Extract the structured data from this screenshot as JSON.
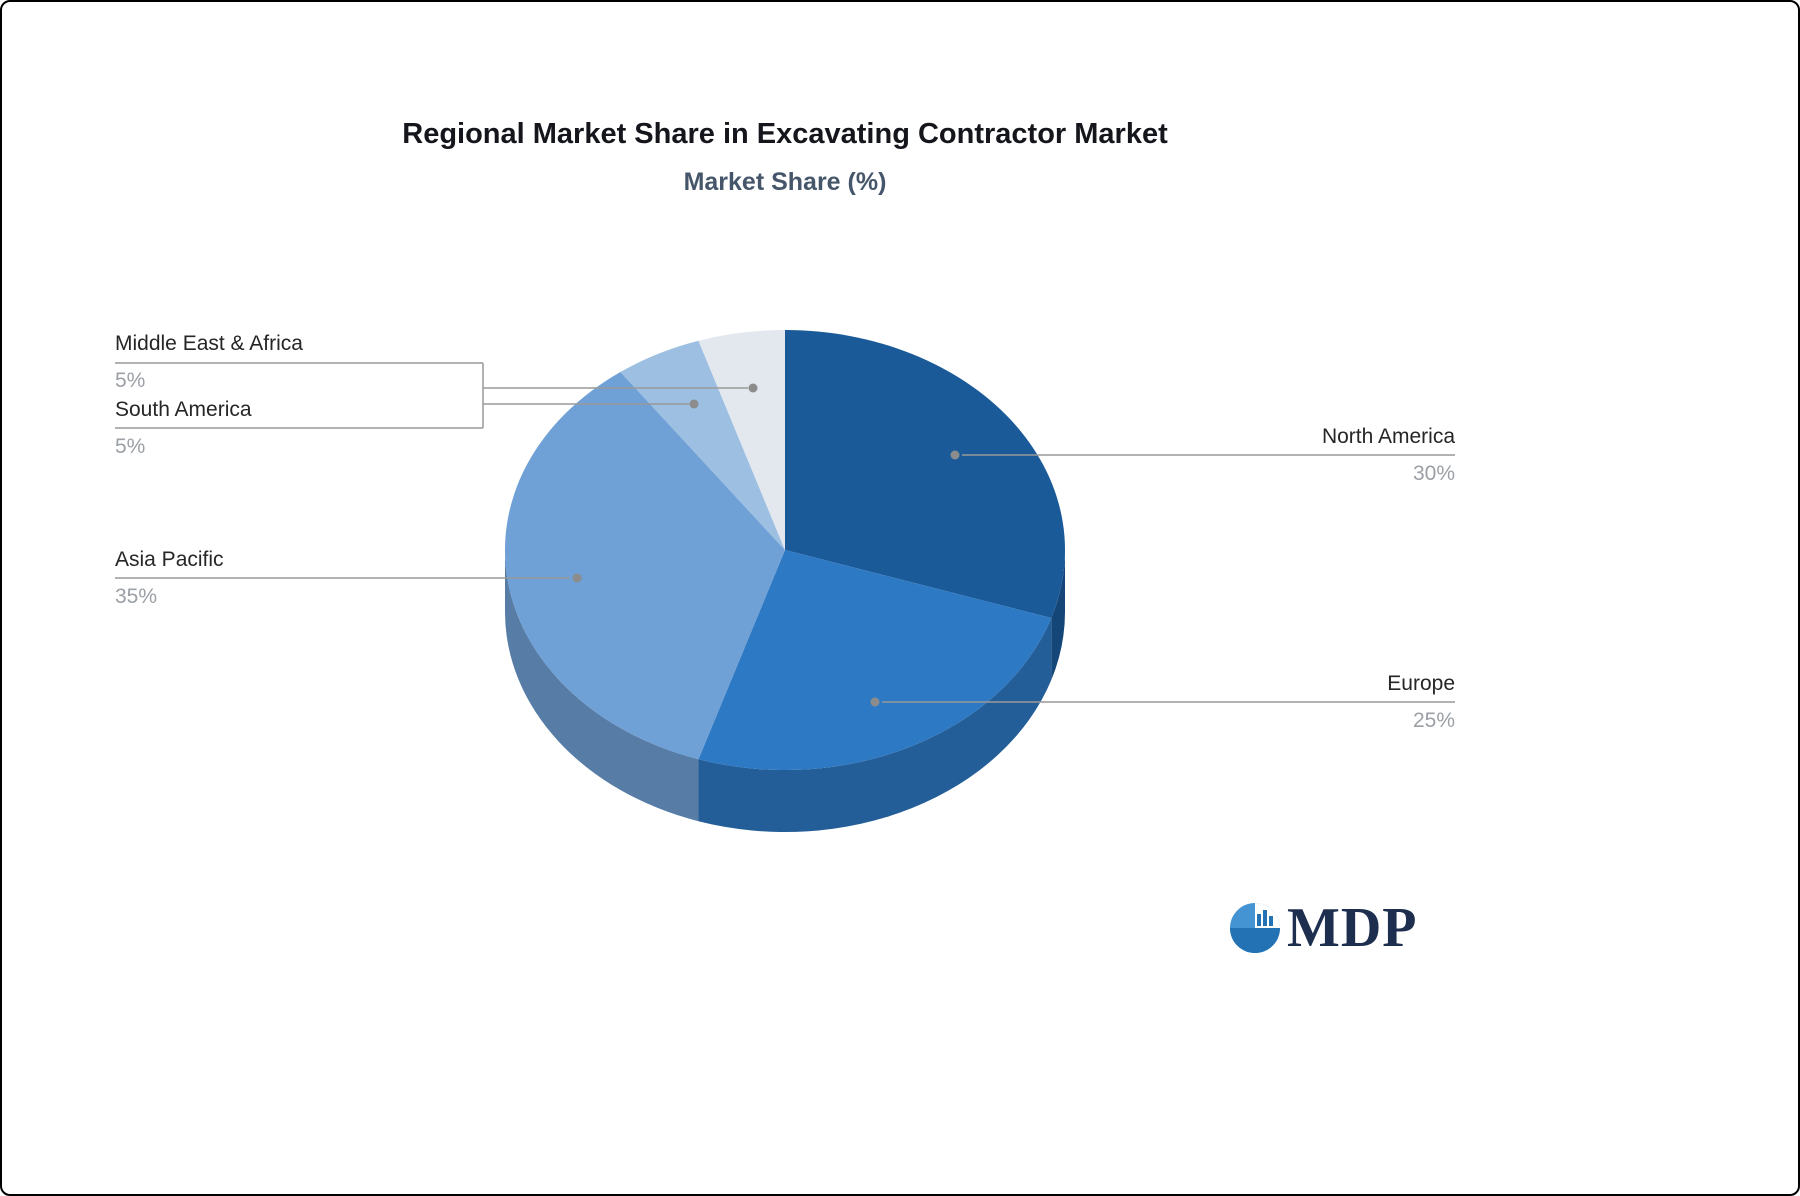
{
  "chart_data": {
    "type": "pie",
    "title": "Regional Market Share in Excavating Contractor Market",
    "subtitle": "Market Share (%)",
    "unit": "%",
    "style": "3d",
    "direction": "clockwise",
    "start_angle_deg": 0,
    "legend_position": "callout-labels",
    "slices": [
      {
        "label": "North America",
        "value": 30,
        "display": "30%",
        "color": "#1a5a99"
      },
      {
        "label": "Europe",
        "value": 25,
        "display": "25%",
        "color": "#2e79c3"
      },
      {
        "label": "Asia Pacific",
        "value": 35,
        "display": "35%",
        "color": "#6fa0d6"
      },
      {
        "label": "South America",
        "value": 5,
        "display": "5%",
        "color": "#9dbfe2"
      },
      {
        "label": "Middle East & Africa",
        "value": 5,
        "display": "5%",
        "color": "#e3e8ef"
      }
    ]
  },
  "logo": {
    "text": "MDP"
  },
  "colors": {
    "leader_line": "#999999",
    "leader_dot": "#8c8c8c",
    "label_name": "#262626",
    "label_value": "#9aa0a6",
    "subtitle": "#46566a",
    "logo_navy": "#1d2e4e",
    "logo_blue": "#2272b4"
  }
}
